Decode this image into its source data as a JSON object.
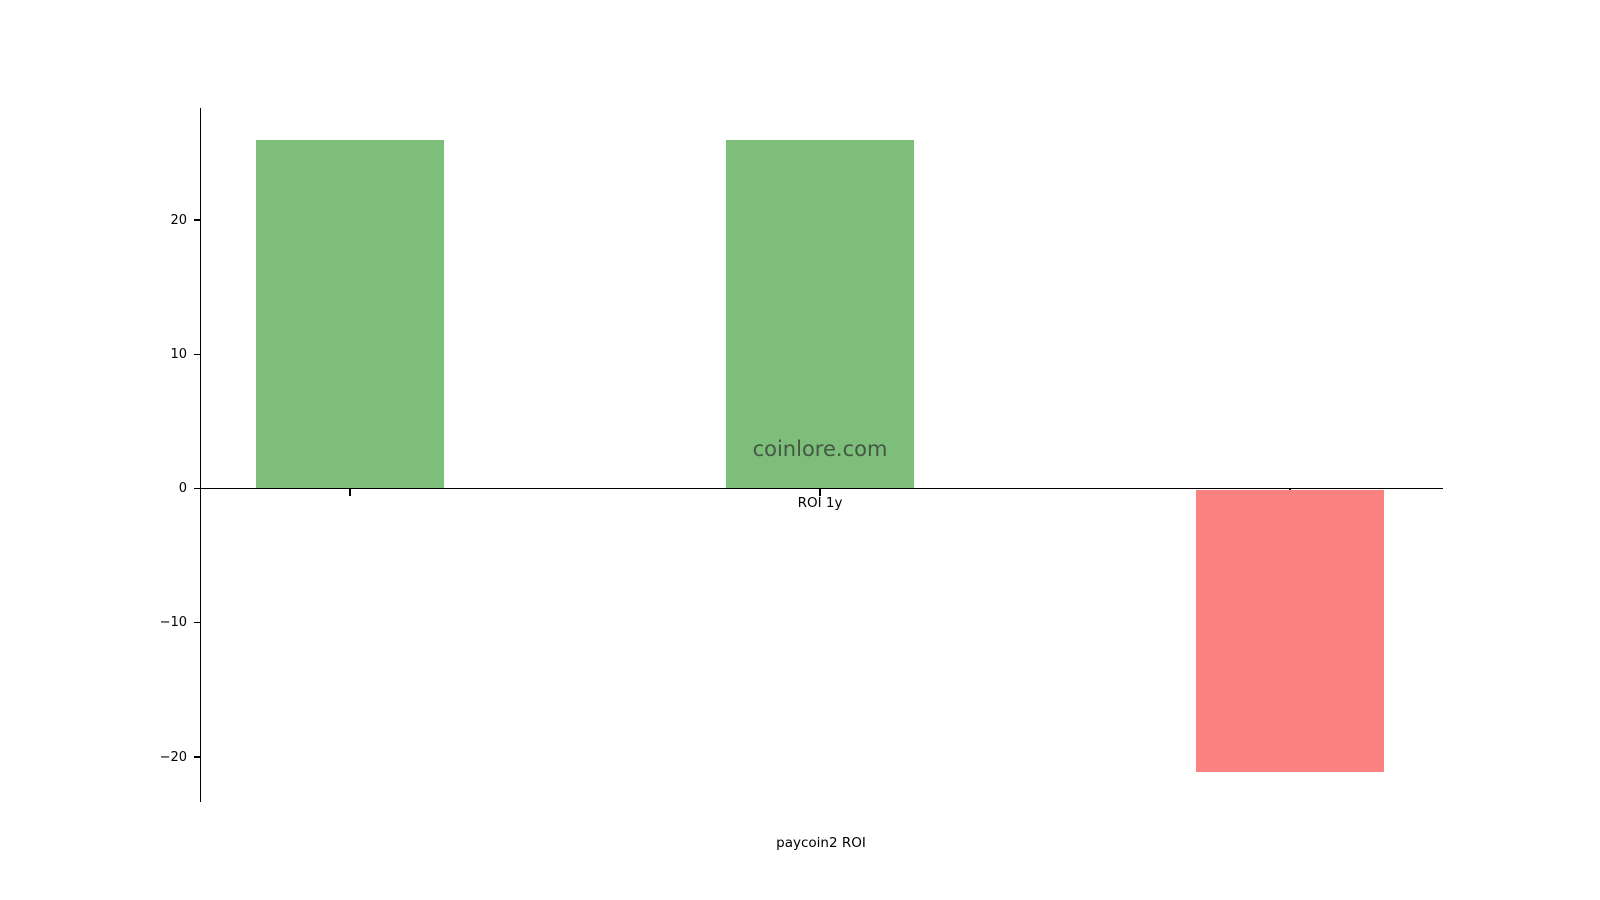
{
  "page": {
    "background_color": "#ffffff"
  },
  "chart_data": {
    "type": "bar",
    "title": "",
    "xlabel": "paycoin2 ROI",
    "ylabel": "",
    "watermark": "coinlore.com",
    "categories": [
      "",
      "ROI 1y",
      ""
    ],
    "values": [
      26,
      26,
      -21
    ],
    "bar_colors": [
      "#7dbe7b",
      "#7dbe7b",
      "#fc8181"
    ],
    "positive_color": "#7dbe7b",
    "negative_color": "#fc8181",
    "yticks": {
      "values": [
        20,
        10,
        0,
        -10,
        -20
      ],
      "labels": [
        "20",
        "10",
        "0",
        "−10",
        "−20"
      ]
    },
    "ylim": [
      -23.35,
      28.35
    ],
    "grid": false,
    "legend": false,
    "axis_color": "#000000",
    "tick_label_color": "#000000",
    "watermark_color": "rgba(40,40,40,0.68)"
  }
}
